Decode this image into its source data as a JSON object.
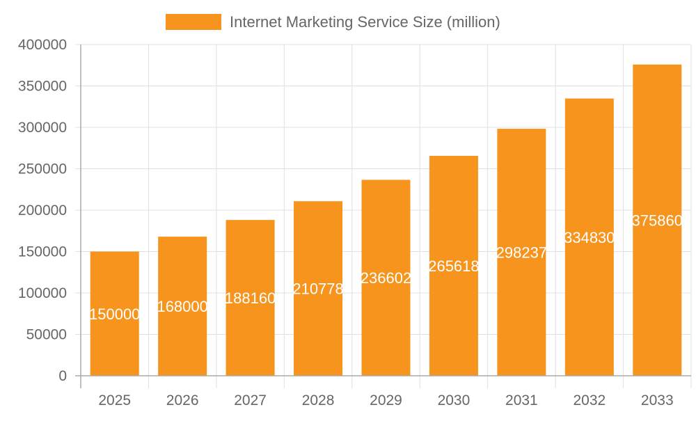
{
  "chart_data": {
    "type": "bar",
    "categories": [
      "2025",
      "2026",
      "2027",
      "2028",
      "2029",
      "2030",
      "2031",
      "2032",
      "2033"
    ],
    "series": [
      {
        "name": "Internet Marketing Service Size (million)",
        "values": [
          150000,
          168000,
          188160,
          210778,
          236602,
          265618,
          298237,
          334830,
          375860
        ],
        "color": "#F7941E"
      }
    ],
    "data_labels": [
      "150000",
      "168000",
      "188160",
      "210778",
      "236602",
      "265618",
      "298237",
      "334830",
      "375860"
    ],
    "yticks": [
      0,
      50000,
      100000,
      150000,
      200000,
      250000,
      300000,
      350000,
      400000
    ],
    "ylim": [
      0,
      400000
    ],
    "grid": true,
    "legend": "top-center",
    "title": "",
    "xlabel": "",
    "ylabel": ""
  }
}
